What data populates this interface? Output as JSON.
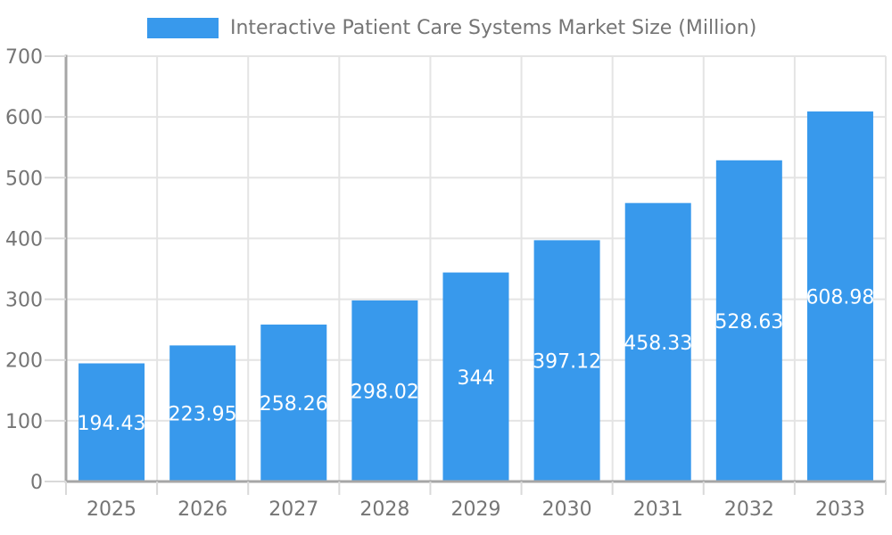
{
  "legend": {
    "label": "Interactive Patient Care Systems Market Size (Million)",
    "swatch_color": "#3899EC"
  },
  "chart_data": {
    "type": "bar",
    "title": "Interactive Patient Care Systems Market Size (Million)",
    "categories": [
      "2025",
      "2026",
      "2027",
      "2028",
      "2029",
      "2030",
      "2031",
      "2032",
      "2033"
    ],
    "values": [
      194.43,
      223.95,
      258.26,
      298.02,
      344,
      397.12,
      458.33,
      528.63,
      608.98
    ],
    "value_labels": [
      "194.43",
      "223.95",
      "258.26",
      "298.02",
      "344",
      "397.12",
      "458.33",
      "528.63",
      "608.98"
    ],
    "xlabel": "",
    "ylabel": "",
    "ylim": [
      0,
      700
    ],
    "yticks": [
      0,
      100,
      200,
      300,
      400,
      500,
      600,
      700
    ],
    "grid": true,
    "legend_position": "top",
    "colors": {
      "bar": "#3899EC",
      "axis_text": "#757575",
      "value_label": "#FFFFFF",
      "grid_line": "#E4E4E4",
      "tick_line": "#D9D9D9",
      "axis_line": "#A6A6A6"
    }
  }
}
